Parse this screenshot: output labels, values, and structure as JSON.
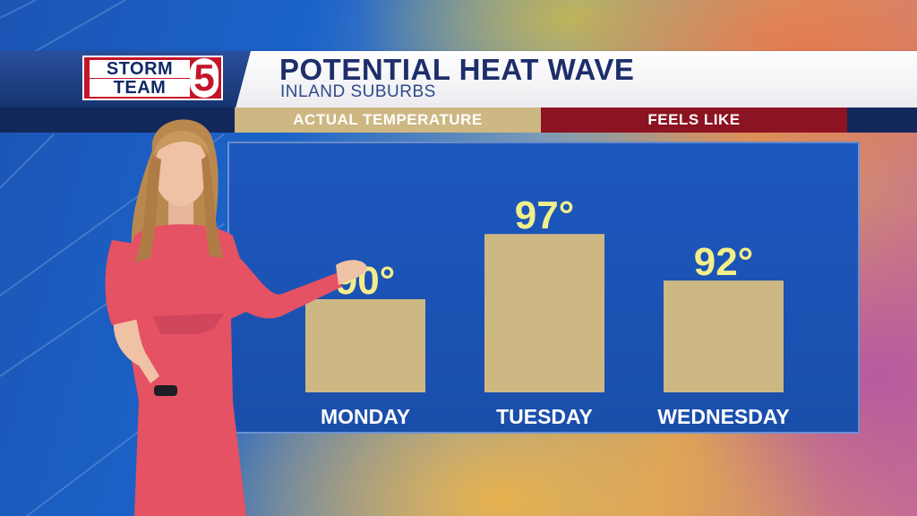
{
  "header": {
    "logo_top": "STORM",
    "logo_bottom": "TEAM",
    "logo_number": "5",
    "title": "POTENTIAL HEAT WAVE",
    "subtitle": "INLAND SUBURBS"
  },
  "legend": {
    "actual_label": "ACTUAL TEMPERATURE",
    "feels_label": "FEELS LIKE"
  },
  "colors": {
    "actual": "#cdb783",
    "feels_like": "#8c1321",
    "value_text": "#f2ee8a",
    "panel": "#1d58bf",
    "title": "#1d2e6b"
  },
  "chart_data": {
    "type": "bar",
    "title": "POTENTIAL HEAT WAVE",
    "subtitle": "INLAND SUBURBS",
    "categories": [
      "MONDAY",
      "TUESDAY",
      "WEDNESDAY"
    ],
    "series": [
      {
        "name": "ACTUAL TEMPERATURE",
        "values": [
          90,
          97,
          92
        ]
      }
    ],
    "value_labels": [
      "90°",
      "97°",
      "92°"
    ],
    "legend_entries": [
      "ACTUAL TEMPERATURE",
      "FEELS LIKE"
    ],
    "legend_position": "top",
    "ylim": [
      80,
      100
    ],
    "grid": false
  }
}
